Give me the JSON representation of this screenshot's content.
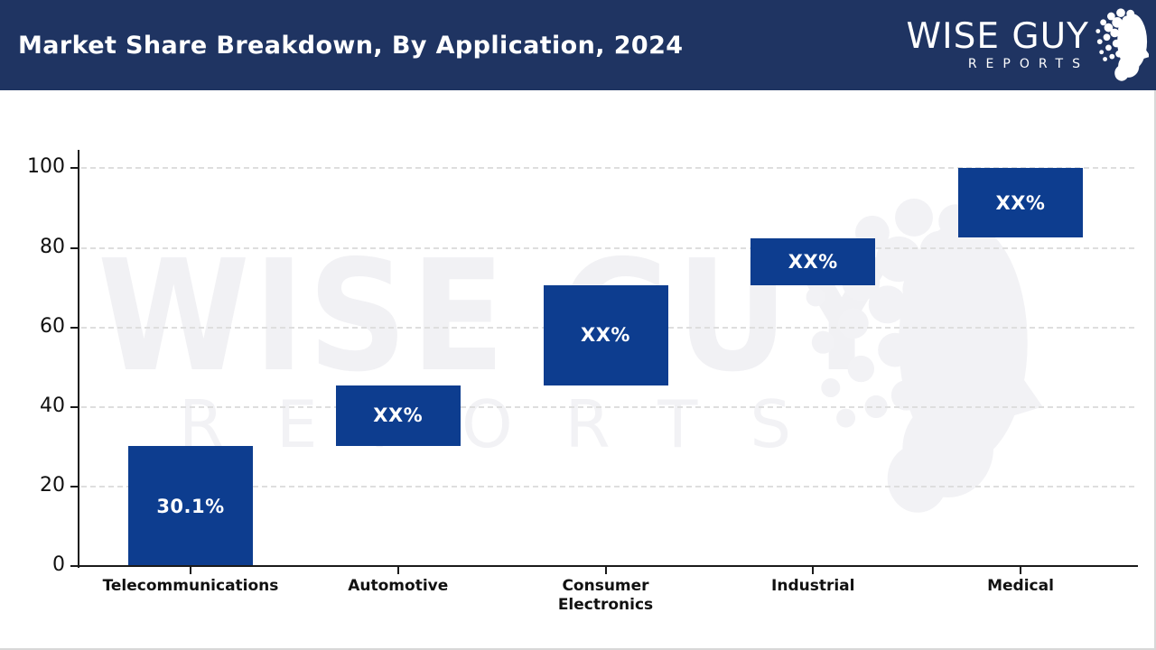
{
  "header": {
    "title": "Market Share Breakdown, By Application, 2024",
    "background_color": "#1f3462",
    "logo": {
      "line1": "WISE GUY",
      "line2": "REPORTS"
    }
  },
  "watermark": {
    "line1": "WISE GUY",
    "line2": "REPORTS"
  },
  "chart_data": {
    "type": "bar",
    "subtype": "waterfall",
    "title": "Market Share Breakdown, By Application, 2024",
    "categories": [
      "Telecommunications",
      "Automotive",
      "Consumer\nElectronics",
      "Industrial",
      "Medical"
    ],
    "segments": [
      {
        "category": "Telecommunications",
        "start": 0,
        "end": 30.1,
        "label": "30.1%"
      },
      {
        "category": "Automotive",
        "start": 30.1,
        "end": 45.5,
        "label": "XX%"
      },
      {
        "category": "Consumer Electronics",
        "start": 45.5,
        "end": 70.5,
        "label": "XX%"
      },
      {
        "category": "Industrial",
        "start": 70.5,
        "end": 82.5,
        "label": "XX%"
      },
      {
        "category": "Medical",
        "start": 82.5,
        "end": 100,
        "label": "XX%"
      }
    ],
    "yticks": [
      0,
      20,
      40,
      60,
      80,
      100
    ],
    "ylim": [
      0,
      105
    ],
    "xlabel": "",
    "ylabel": "",
    "grid": "horizontal-dashed",
    "legend": "none",
    "bar_color": "#0d3d8f",
    "bar_label_color": "#ffffff",
    "axis_color": "#1a1a1a"
  }
}
